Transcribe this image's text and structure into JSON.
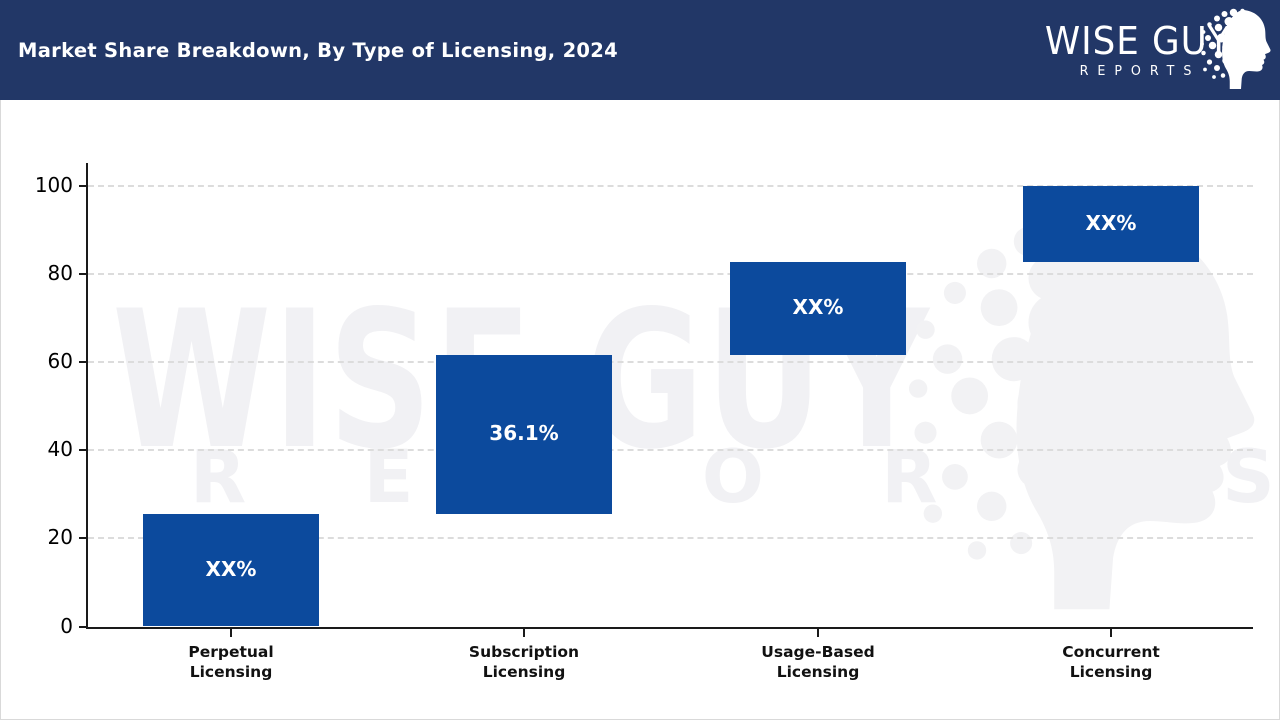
{
  "header": {
    "title": "Market Share Breakdown, By Type of Licensing, 2024",
    "logo": {
      "name": "WISE GUY",
      "subtitle": "REPORTS"
    }
  },
  "watermark": {
    "line1": "WISE GUY",
    "line2": "R E P O R T S"
  },
  "colors": {
    "header_bg": "#223767",
    "bar": "#0c4a9d",
    "grid": "#dcdcdc",
    "axis": "#1a1a1a",
    "watermark": "#f1f1f4"
  },
  "chart_data": {
    "type": "bar",
    "subtype": "waterfall-range-bars",
    "title": "Market Share Breakdown, By Type of Licensing, 2024",
    "categories": [
      "Perpetual\nLicensing",
      "Subscription\nLicensing",
      "Usage-Based\nLicensing",
      "Concurrent\nLicensing"
    ],
    "segments": [
      {
        "category": "Perpetual Licensing",
        "start": 0,
        "end": 25.6,
        "value_label": "XX%"
      },
      {
        "category": "Subscription Licensing",
        "start": 25.6,
        "end": 61.7,
        "value": 36.1,
        "value_label": "36.1%"
      },
      {
        "category": "Usage-Based Licensing",
        "start": 61.7,
        "end": 82.8,
        "value_label": "XX%"
      },
      {
        "category": "Concurrent Licensing",
        "start": 82.8,
        "end": 100,
        "value_label": "XX%"
      }
    ],
    "xlabel": "",
    "ylabel": "",
    "ylim": [
      0,
      105
    ],
    "yticks": [
      0,
      20,
      40,
      60,
      80,
      100
    ],
    "grid": "horizontal dashed",
    "legend_position": "none",
    "bar_color": "#0c4a9d"
  }
}
